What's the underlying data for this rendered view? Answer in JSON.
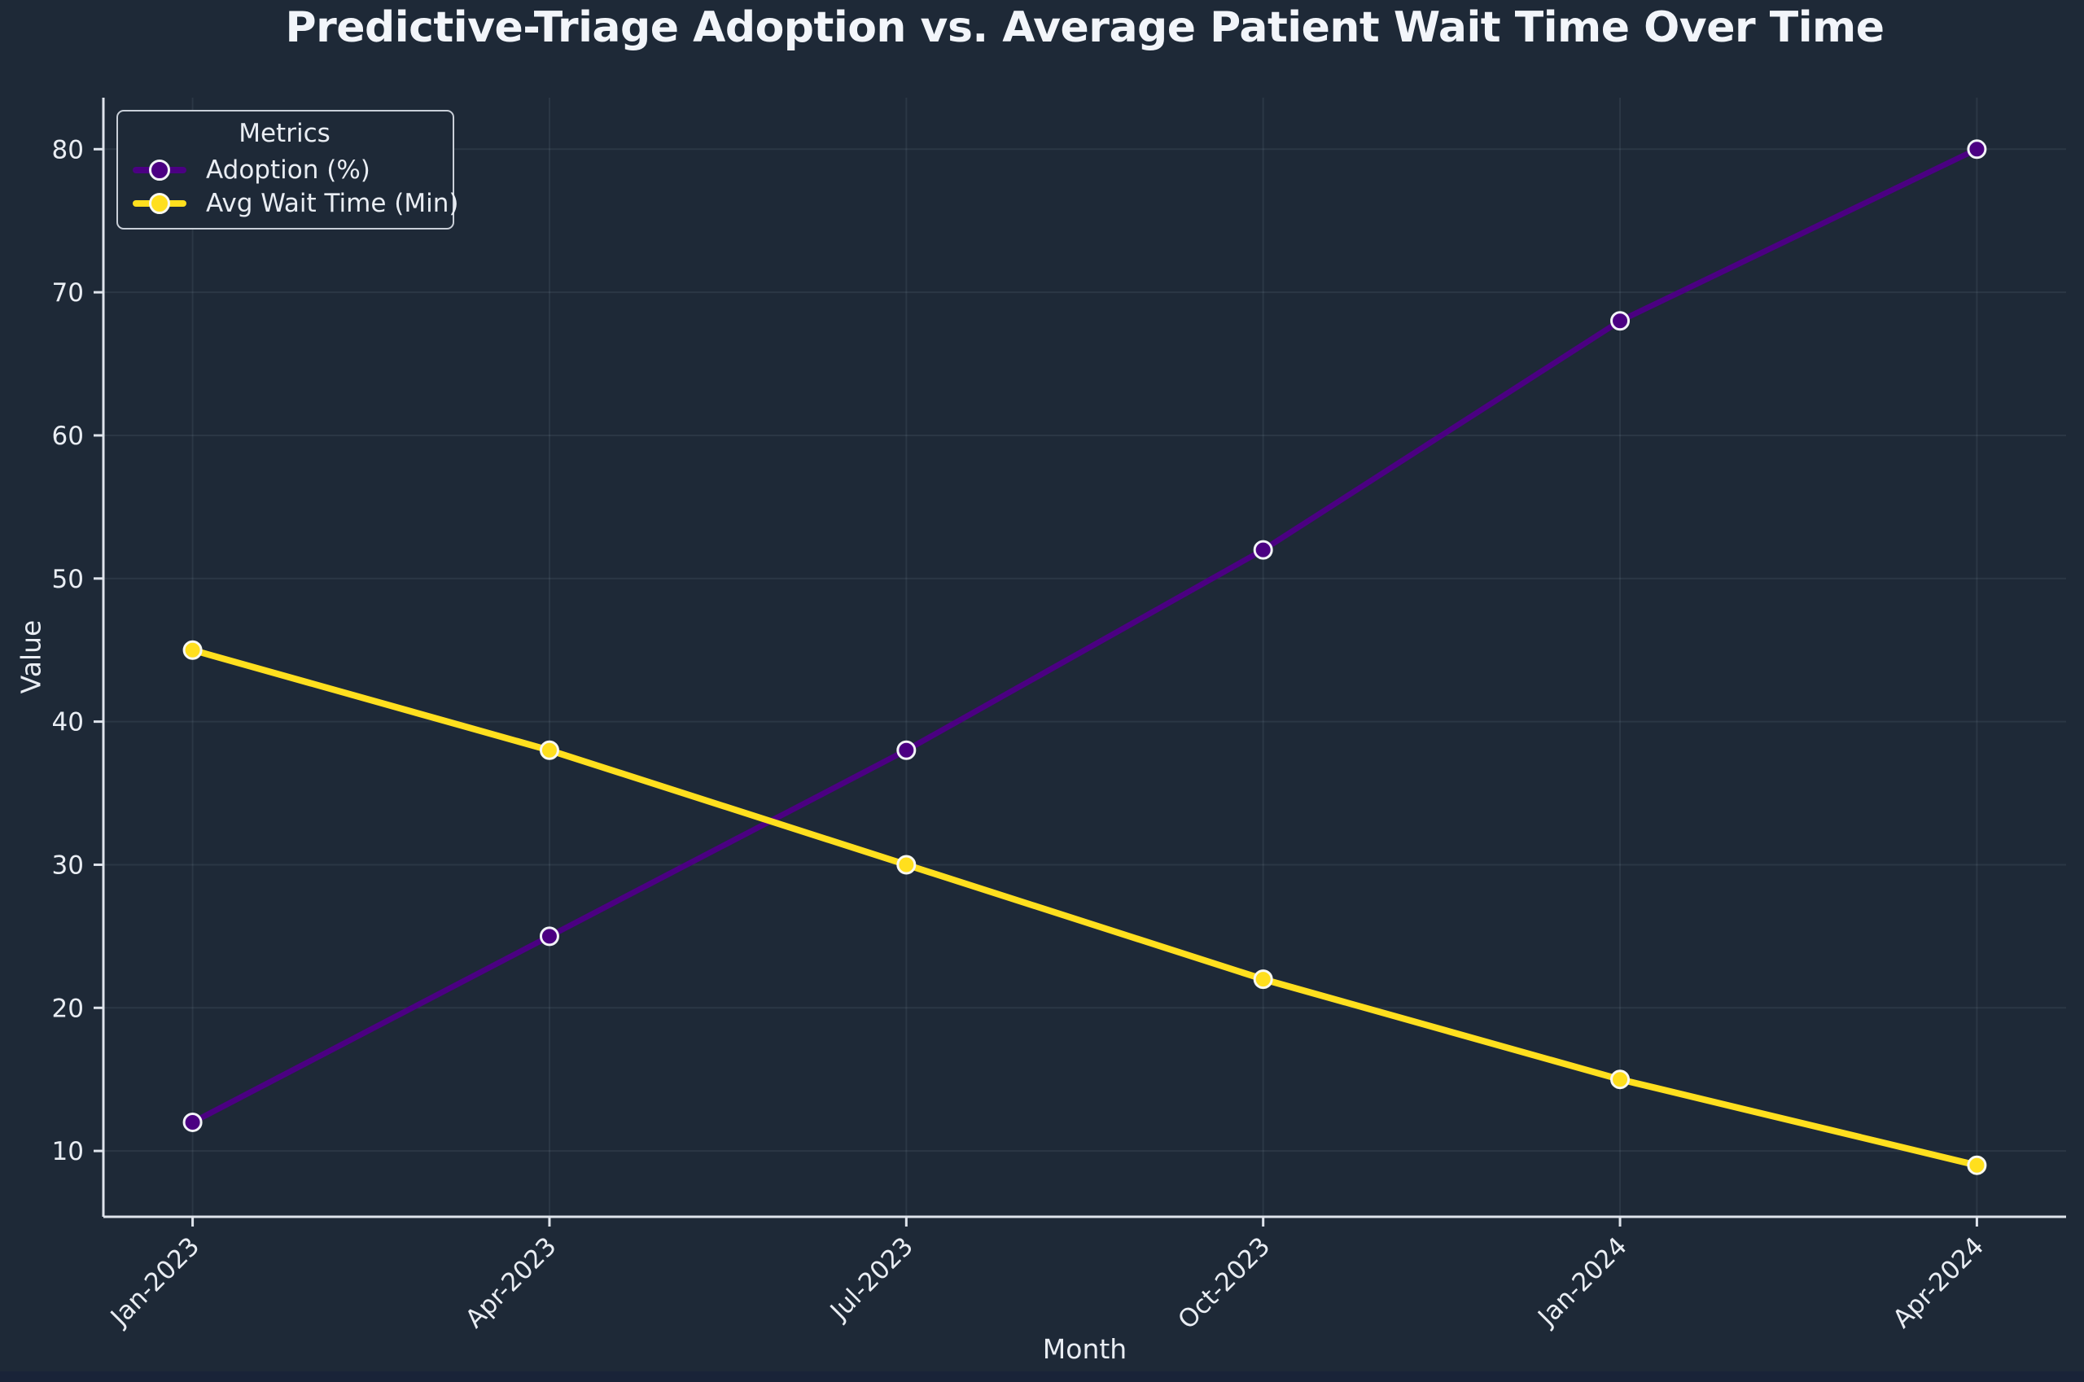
{
  "figure": {
    "background": "#1e2937",
    "text_color": "#e9edf3",
    "axis_color": "#dfe4ec",
    "grid_color": "rgba(210,225,245,0.08)",
    "bottom_edge_color": "#192338"
  },
  "chart_data": {
    "type": "line",
    "title": "Predictive-Triage Adoption vs. Average Patient Wait Time Over Time",
    "xlabel": "Month",
    "ylabel": "Value",
    "categories": [
      "Jan-2023",
      "Apr-2023",
      "Jul-2023",
      "Oct-2023",
      "Jan-2024",
      "Apr-2024"
    ],
    "series": [
      {
        "name": "Adoption (%)",
        "color": "#4b0082",
        "marker_fill": "#4b0082",
        "marker_edge": "#f2f3f7",
        "line_width": 7,
        "values": [
          12,
          25,
          38,
          52,
          68,
          80
        ]
      },
      {
        "name": "Avg Wait Time (Min)",
        "color": "#ffdf1e",
        "marker_fill": "#ffdf1e",
        "marker_edge": "#f8f8f0",
        "line_width": 8,
        "values": [
          45,
          38,
          30,
          22,
          15,
          9
        ]
      }
    ],
    "yticks": [
      10,
      20,
      30,
      40,
      50,
      60,
      70,
      80
    ],
    "ylim": [
      5.4,
      83.6
    ],
    "xlim": [
      -0.25,
      5.25
    ],
    "grid": true,
    "legend": {
      "title": "Metrics",
      "position": "upper-left"
    }
  }
}
